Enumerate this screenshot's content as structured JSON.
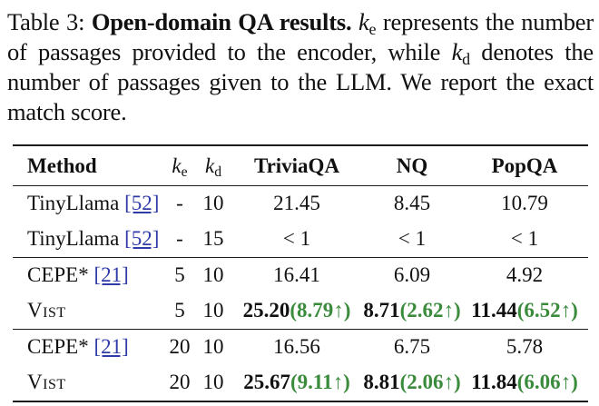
{
  "colors": {
    "gain_green": "#3a8b3c",
    "cite_blue": "#2f3ba8",
    "rule_black": "#1c1c1c",
    "background": "#ffffff"
  },
  "caption": {
    "table_label": "Table 3: ",
    "title_bold": "Open-domain QA results.",
    "space_a": " ",
    "k1_base": "k",
    "k1_sub": "e",
    "seg_b": " represents the number of passages provided to the encoder, while ",
    "k2_base": "k",
    "k2_sub": "d",
    "seg_c": " denotes the number of passages given to the LLM. We report the exact match score."
  },
  "table": {
    "header": {
      "method": "Method",
      "ke_base": "k",
      "ke_sub": "e",
      "kd_base": "k",
      "kd_sub": "d",
      "triviaqa": "TriviaQA",
      "nq": "NQ",
      "popqa": "PopQA"
    },
    "groups": [
      {
        "rows": [
          {
            "method": "TinyLlama",
            "cite": "[52]",
            "ke": "-",
            "kd": "10",
            "trivia": {
              "value": "21.45"
            },
            "nq": {
              "value": "8.45"
            },
            "pop": {
              "value": "10.79"
            }
          },
          {
            "method": "TinyLlama",
            "cite": "[52]",
            "ke": "-",
            "kd": "15",
            "trivia": {
              "value": "< 1"
            },
            "nq": {
              "value": "< 1"
            },
            "pop": {
              "value": "< 1"
            }
          }
        ]
      },
      {
        "rows": [
          {
            "method": "CEPE*",
            "cite": "[21]",
            "ke": "5",
            "kd": "10",
            "trivia": {
              "value": "16.41"
            },
            "nq": {
              "value": "6.09"
            },
            "pop": {
              "value": "4.92"
            }
          },
          {
            "method": "Vist",
            "cite": "",
            "ke": "5",
            "kd": "10",
            "trivia": {
              "value": "25.20",
              "gain": "(8.79↑)"
            },
            "nq": {
              "value": "8.71",
              "gain": "(2.62↑)"
            },
            "pop": {
              "value": "11.44",
              "gain": "(6.52↑)"
            }
          }
        ]
      },
      {
        "rows": [
          {
            "method": "CEPE*",
            "cite": "[21]",
            "ke": "20",
            "kd": "10",
            "trivia": {
              "value": "16.56"
            },
            "nq": {
              "value": "6.75"
            },
            "pop": {
              "value": "5.78"
            }
          },
          {
            "method": "Vist",
            "cite": "",
            "ke": "20",
            "kd": "10",
            "trivia": {
              "value": "25.67",
              "gain": "(9.11↑)"
            },
            "nq": {
              "value": "8.81",
              "gain": "(2.06↑)"
            },
            "pop": {
              "value": "11.84",
              "gain": "(6.06↑)"
            }
          }
        ]
      }
    ]
  }
}
